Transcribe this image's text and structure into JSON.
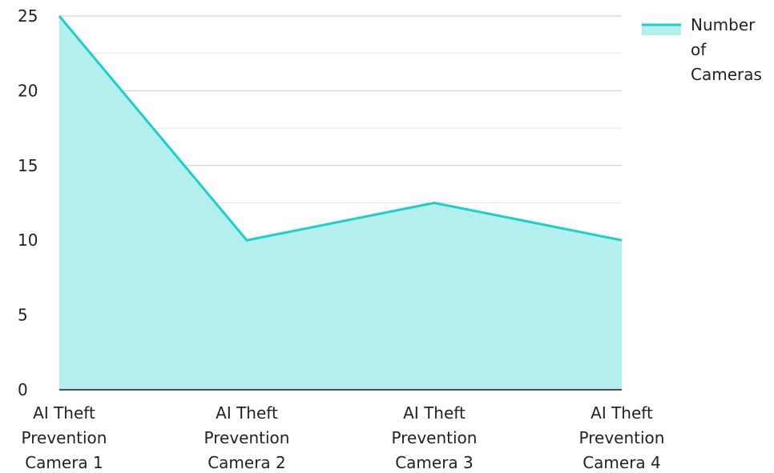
{
  "chart_data": {
    "type": "area",
    "categories": [
      "AI Theft Prevention Camera 1",
      "AI Theft Prevention Camera 2",
      "AI Theft Prevention Camera 3",
      "AI Theft Prevention Camera 4"
    ],
    "category_lines": [
      [
        "AI Theft",
        "Prevention",
        "Camera 1"
      ],
      [
        "AI Theft",
        "Prevention",
        "Camera 2"
      ],
      [
        "AI Theft",
        "Prevention",
        "Camera 3"
      ],
      [
        "AI Theft",
        "Prevention",
        "Camera 4"
      ]
    ],
    "series": [
      {
        "name": "Number of Cameras",
        "name_lines": [
          "Number",
          "of",
          "Cameras"
        ],
        "values": [
          25,
          10,
          12.5,
          10
        ],
        "line_color": "#1ccfca",
        "fill_color": "#b2efed"
      }
    ],
    "yticks": [
      "0",
      "5",
      "10",
      "15",
      "20",
      "25"
    ],
    "ylim": [
      0,
      25
    ],
    "minor_grid_step": 2.5,
    "grid": true,
    "legend_position": "top-right",
    "title": "",
    "xlabel": "",
    "ylabel": ""
  }
}
